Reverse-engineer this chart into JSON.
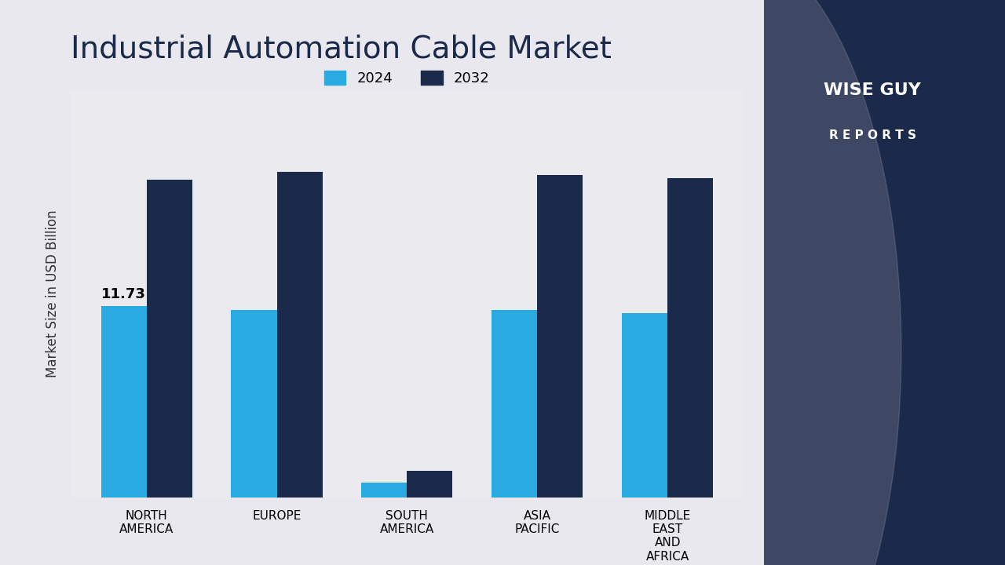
{
  "title": "Industrial Automation Cable Market",
  "ylabel": "Market Size in USD Billion",
  "categories": [
    "NORTH\nAMERICA",
    "EUROPE",
    "SOUTH\nAMERICA",
    "ASIA\nPACIFIC",
    "MIDDLE\nEAST\nAND\nAFRICA"
  ],
  "values_2024": [
    11.73,
    11.5,
    0.9,
    11.5,
    11.3
  ],
  "values_2032": [
    19.5,
    20.0,
    1.6,
    19.8,
    19.6
  ],
  "color_2024": "#29ABE2",
  "color_2032": "#1B2A4A",
  "annotation_text": "11.73",
  "annotation_bar_index": 0,
  "legend_labels": [
    "2024",
    "2032"
  ],
  "background_color": "#E8E8EE",
  "chart_bg_color": "#EAEAEF",
  "title_color": "#1B2A4A",
  "ylabel_color": "#333333",
  "bar_width": 0.35,
  "ylim": [
    0,
    25
  ],
  "title_fontsize": 28,
  "label_fontsize": 11,
  "legend_fontsize": 13,
  "annotation_fontsize": 13,
  "right_panel_color": "#1B2A4A"
}
